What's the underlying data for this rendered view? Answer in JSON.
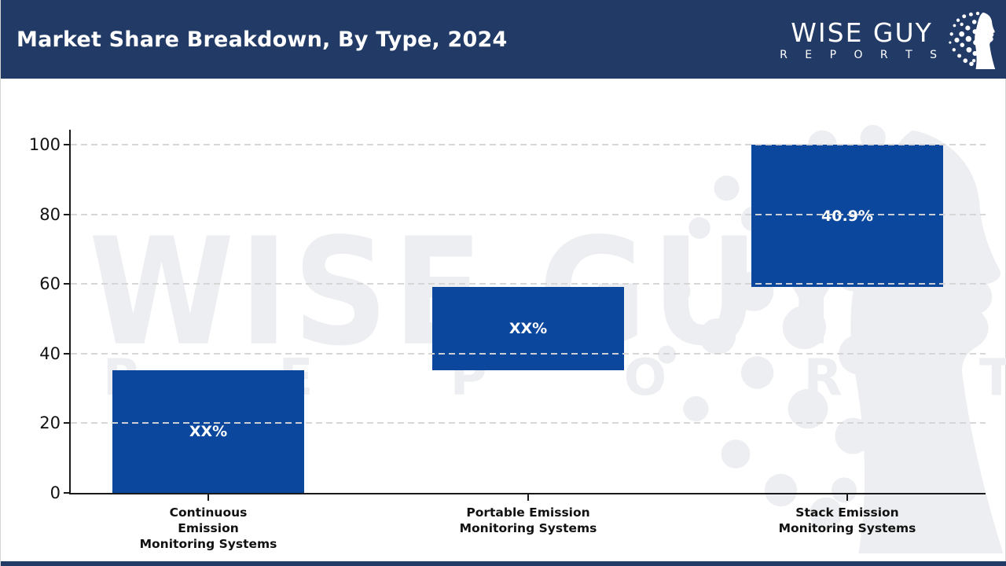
{
  "header": {
    "title": "Market Share Breakdown, By Type, 2024",
    "bg_color": "#223a66",
    "logo": {
      "name": "WISE GUY",
      "subname": "R E P O R T S"
    }
  },
  "watermark": {
    "line1": "WISE GUY",
    "line2": "R E P O R T S",
    "color": "#edeef1"
  },
  "footer": {
    "bg_color": "#223a66"
  },
  "chart_data": {
    "type": "bar",
    "variant": "floating stacked segments (waterfall-style market share)",
    "title": "Market Share Breakdown, By Type, 2024",
    "categories": [
      [
        "Continuous",
        "Emission",
        "Monitoring Systems"
      ],
      [
        "Portable Emission",
        "Monitoring Systems"
      ],
      [
        "Stack Emission",
        "Monitoring Systems"
      ]
    ],
    "bars": [
      {
        "category": "Continuous Emission Monitoring Systems",
        "start": 0,
        "end": 35.3,
        "label": "XX%"
      },
      {
        "category": "Portable Emission Monitoring Systems",
        "start": 35.3,
        "end": 59.1,
        "label": "XX%"
      },
      {
        "category": "Stack Emission Monitoring Systems",
        "start": 59.1,
        "end": 100,
        "label": "40.9%"
      }
    ],
    "ylim": [
      0,
      100
    ],
    "yticks": [
      0,
      20,
      40,
      60,
      80,
      100
    ],
    "grid": "horizontal dashed",
    "legend_position": "none",
    "bar_color": "#0b479d",
    "bar_label_color": "#ffffff",
    "axis_color": "#1a1a1a",
    "grid_color": "#d5d5d5",
    "tick_label_color": "#111111"
  }
}
